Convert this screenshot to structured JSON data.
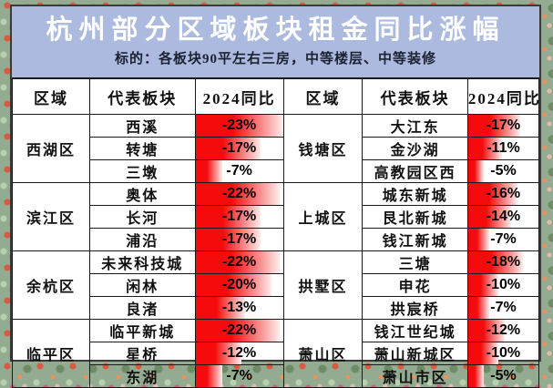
{
  "banner": {
    "title": "杭州部分区域板块租金同比涨幅",
    "subtitle": "标的：各板块90平左右三房，中等楼层、中等装修"
  },
  "columns": [
    "区域",
    "代表板块",
    "2024同比"
  ],
  "colors": {
    "banner_bg": "#abbade",
    "title_text": "#ffffff",
    "subtitle_text": "#1b2133",
    "bar_red": "#f50b0b",
    "bar_mid": "#fa9c9c",
    "bar_tip": "#fdeded",
    "grid_border": "#1a1a1a",
    "frame_border_bg": "#93ab90"
  },
  "bar_scale_max": 23,
  "chart_data": {
    "type": "table",
    "title": "杭州部分区域板块租金同比涨幅",
    "subtitle": "标的：各板块90平左右三房，中等楼层、中等装修",
    "column_headers": [
      "区域",
      "代表板块",
      "2024同比"
    ],
    "groups_left": [
      {
        "region": "西湖区",
        "sectors": [
          {
            "name": "西溪",
            "yoy_label": "-23%",
            "value": -23
          },
          {
            "name": "转塘",
            "yoy_label": "-17%",
            "value": -17
          },
          {
            "name": "三墩",
            "yoy_label": "-7%",
            "value": -7
          }
        ]
      },
      {
        "region": "滨江区",
        "sectors": [
          {
            "name": "奥体",
            "yoy_label": "-22%",
            "value": -22
          },
          {
            "name": "长河",
            "yoy_label": "-17%",
            "value": -17
          },
          {
            "name": "浦沿",
            "yoy_label": "-17%",
            "value": -17
          }
        ]
      },
      {
        "region": "余杭区",
        "sectors": [
          {
            "name": "未来科技城",
            "yoy_label": "-22%",
            "value": -22
          },
          {
            "name": "闲林",
            "yoy_label": "-20%",
            "value": -20
          },
          {
            "name": "良渚",
            "yoy_label": "-13%",
            "value": -13
          }
        ]
      },
      {
        "region": "临平区",
        "sectors": [
          {
            "name": "临平新城",
            "yoy_label": "-22%",
            "value": -22
          },
          {
            "name": "星桥",
            "yoy_label": "-12%",
            "value": -12
          },
          {
            "name": "东湖",
            "yoy_label": "-7%",
            "value": -7
          }
        ]
      }
    ],
    "groups_right": [
      {
        "region": "钱塘区",
        "sectors": [
          {
            "name": "大江东",
            "yoy_label": "-17%",
            "value": -17
          },
          {
            "name": "金沙湖",
            "yoy_label": "-11%",
            "value": -11
          },
          {
            "name": "高教园区西",
            "yoy_label": "-5%",
            "value": -5
          }
        ]
      },
      {
        "region": "上城区",
        "sectors": [
          {
            "name": "城东新城",
            "yoy_label": "-16%",
            "value": -16
          },
          {
            "name": "艮北新城",
            "yoy_label": "-14%",
            "value": -14
          },
          {
            "name": "钱江新城",
            "yoy_label": "-7%",
            "value": -7
          }
        ]
      },
      {
        "region": "拱墅区",
        "sectors": [
          {
            "name": "三塘",
            "yoy_label": "-18%",
            "value": -18
          },
          {
            "name": "申花",
            "yoy_label": "-10%",
            "value": -10
          },
          {
            "name": "拱宸桥",
            "yoy_label": "-7%",
            "value": -7
          }
        ]
      },
      {
        "region": "萧山区",
        "sectors": [
          {
            "name": "钱江世纪城",
            "yoy_label": "-12%",
            "value": -12
          },
          {
            "name": "萧山新城区",
            "yoy_label": "-10%",
            "value": -10
          },
          {
            "name": "萧山市区",
            "yoy_label": "-5%",
            "value": -5
          }
        ]
      }
    ]
  }
}
